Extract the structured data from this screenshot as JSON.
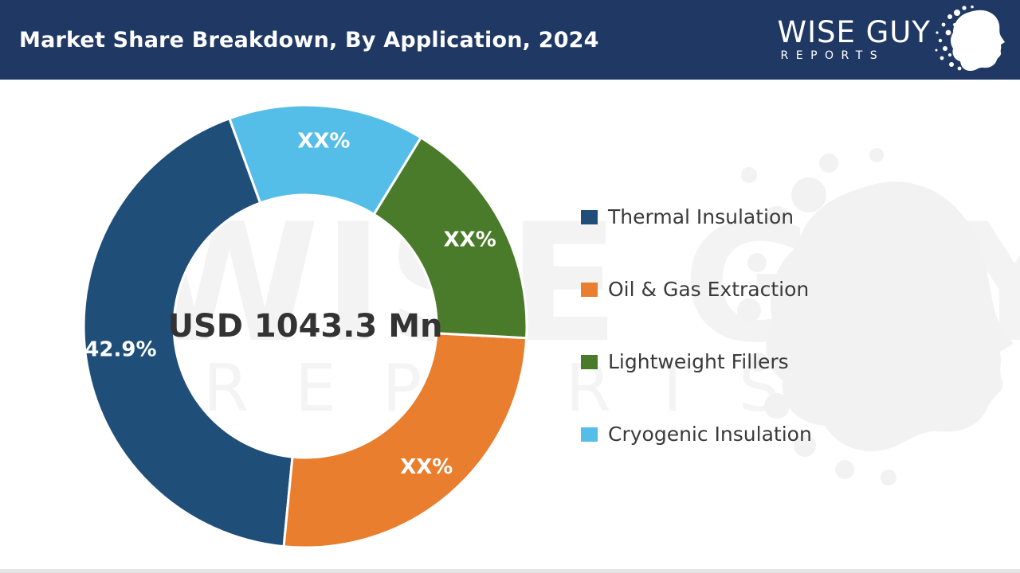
{
  "header": {
    "title": "Market Share Breakdown, By Application, 2024",
    "logo": {
      "line1": "WISE GUY",
      "line2": "REPORTS"
    }
  },
  "watermark": {
    "line1": "WISE GUY",
    "line2": "REPORTS"
  },
  "chart_data": {
    "type": "pie",
    "subtype": "donut",
    "title": "Market Share Breakdown, By Application, 2024",
    "center_label": "USD 1043.3 Mn",
    "start_angle_deg": 110,
    "direction": "counterclockwise",
    "inner_radius_ratio": 0.595,
    "legend_position": "right",
    "categories": [
      "Thermal Insulation",
      "Oil & Gas Extraction",
      "Lightweight Fillers",
      "Cryogenic Insulation"
    ],
    "slices": [
      {
        "label": "Thermal Insulation",
        "display_value": "42.9%",
        "value_pct": 42.9,
        "color": "#1f4e79"
      },
      {
        "label": "Oil & Gas Extraction",
        "display_value": "XX%",
        "value_pct": 25.7,
        "color": "#e87e2e"
      },
      {
        "label": "Lightweight Fillers",
        "display_value": "XX%",
        "value_pct": 17.1,
        "color": "#497b2a"
      },
      {
        "label": "Cryogenic Insulation",
        "display_value": "XX%",
        "value_pct": 14.3,
        "color": "#55bee8"
      }
    ]
  },
  "colors": {
    "header_bg": "#203864",
    "slice_label_text": "#ffffff",
    "center_label_text": "#333333",
    "legend_text": "#3a3a3a",
    "bottom_bar": "#e5e5e5",
    "watermark": "#f3f3f3"
  }
}
